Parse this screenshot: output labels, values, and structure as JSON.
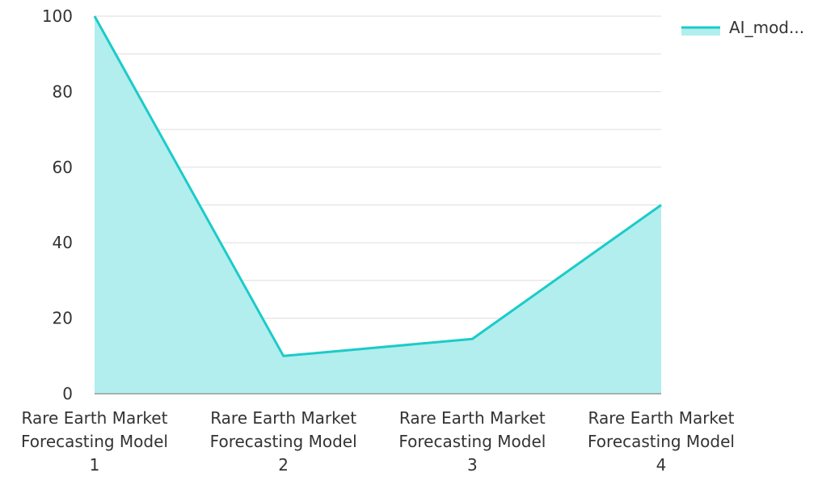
{
  "chart_data": {
    "type": "area",
    "categories": [
      [
        "Rare Earth Market",
        "Forecasting Model",
        "1"
      ],
      [
        "Rare Earth Market",
        "Forecasting Model",
        "2"
      ],
      [
        "Rare Earth Market",
        "Forecasting Model",
        "3"
      ],
      [
        "Rare Earth Market",
        "Forecasting Model",
        "4"
      ]
    ],
    "series": [
      {
        "name": "AI_mod...",
        "values": [
          100,
          10,
          14.5,
          50
        ]
      }
    ],
    "ylim": [
      0,
      100
    ],
    "yticks": [
      "0",
      "20",
      "40",
      "60",
      "80",
      "100"
    ],
    "ytick_values": [
      0,
      20,
      40,
      60,
      80,
      100
    ],
    "minor_grid_values": [
      10,
      30,
      50,
      70,
      90
    ],
    "grid": true,
    "legend_position": "top-right",
    "colors": {
      "line": "#1ccbc9",
      "fill": "#b1eeed",
      "grid": "#dddddd",
      "axis": "#999999"
    }
  }
}
